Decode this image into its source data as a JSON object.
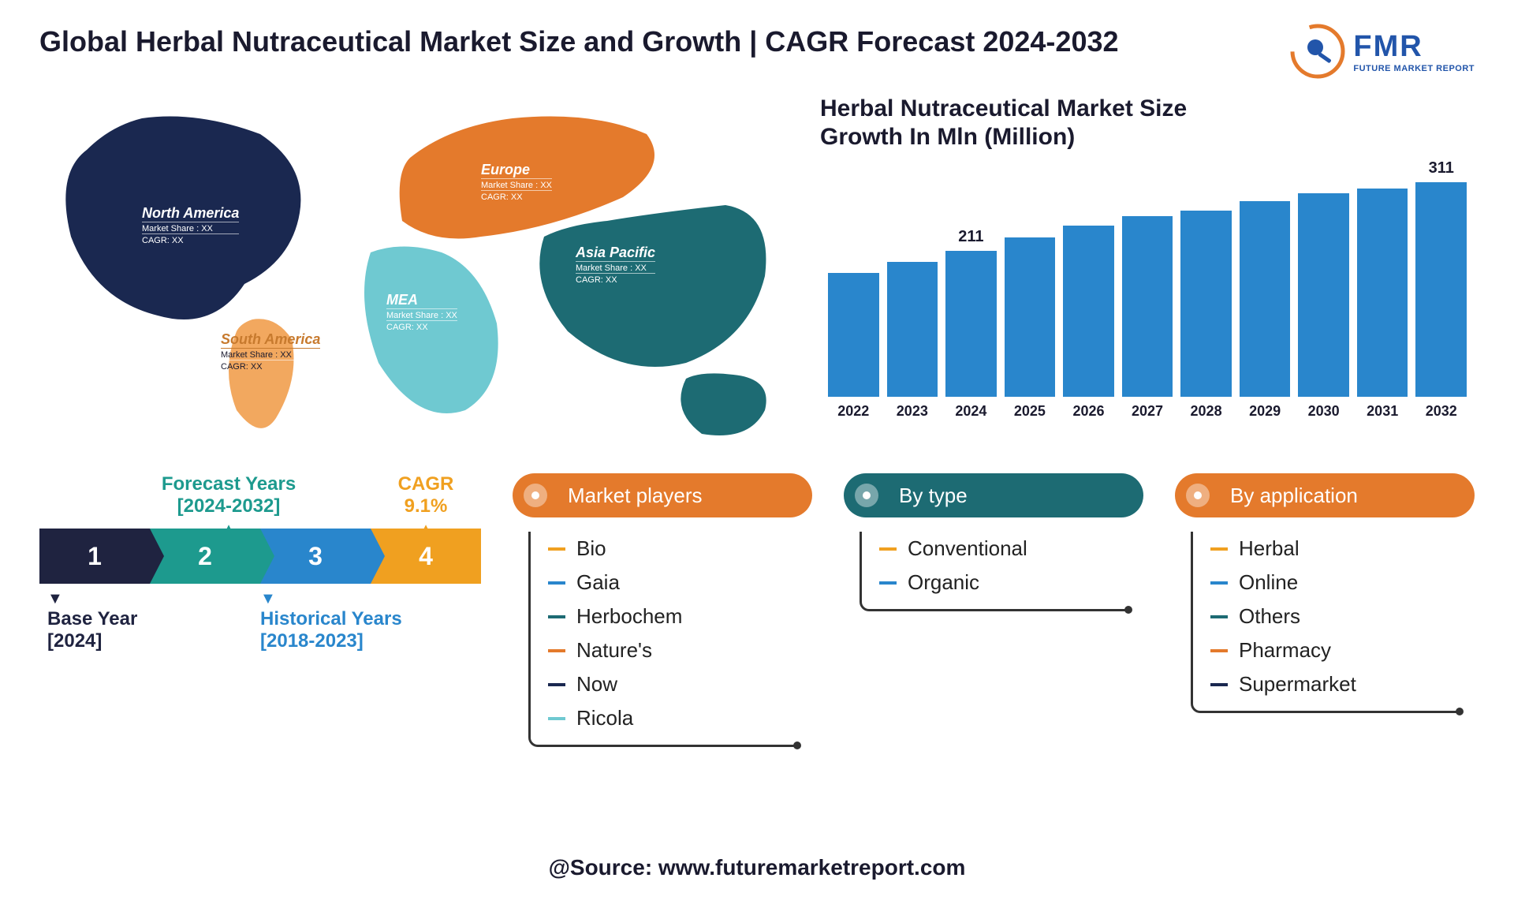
{
  "title": "Global Herbal Nutraceutical Market Size and Growth | CAGR Forecast 2024-2032",
  "logo": {
    "brand": "FMR",
    "sub": "FUTURE MARKET REPORT"
  },
  "map": {
    "regions": [
      {
        "key": "na",
        "name": "North America",
        "share": "Market Share : XX",
        "cagr": "CAGR: XX",
        "color": "#1a2850"
      },
      {
        "key": "sa",
        "name": "South America",
        "share": "Market Share : XX",
        "cagr": "CAGR: XX",
        "color": "#f2a85f"
      },
      {
        "key": "eu",
        "name": "Europe",
        "share": "Market Share : XX",
        "cagr": "CAGR: XX",
        "color": "#e47a2c"
      },
      {
        "key": "mea",
        "name": "MEA",
        "share": "Market Share : XX",
        "cagr": "CAGR: XX",
        "color": "#6fc9d1"
      },
      {
        "key": "ap",
        "name": "Asia Pacific",
        "share": "Market Share : XX",
        "cagr": "CAGR: XX",
        "color": "#1d6b73"
      }
    ]
  },
  "chart": {
    "title": "Herbal Nutraceutical Market Size Growth In Mln (Million)",
    "years": [
      "2022",
      "2023",
      "2024",
      "2025",
      "2026",
      "2027",
      "2028",
      "2029",
      "2030",
      "2031",
      "2032"
    ],
    "values": [
      180,
      196,
      211,
      231,
      248,
      262,
      270,
      283,
      295,
      302,
      311
    ],
    "show_value_label_at": {
      "2024": "211",
      "2032": "311"
    },
    "ylim": [
      0,
      320
    ],
    "bar_color": "#2986cc",
    "label_fontsize": 18,
    "value_fontsize": 20,
    "bar_gap": 10
  },
  "timeline": {
    "top": {
      "forecast": {
        "label": "Forecast Years",
        "range": "[2024-2032]",
        "color": "#1d9a8e"
      },
      "cagr": {
        "label": "CAGR",
        "value": "9.1%",
        "color": "#f0a020"
      }
    },
    "segments": [
      {
        "num": "1",
        "bg": "#1f2340",
        "arrow_color": "#1f2340"
      },
      {
        "num": "2",
        "bg": "#1d9a8e",
        "arrow_color": "#1d9a8e"
      },
      {
        "num": "3",
        "bg": "#2986cc",
        "arrow_color": "#2986cc"
      },
      {
        "num": "4",
        "bg": "#f0a020",
        "arrow_color": "#f0a020"
      }
    ],
    "bottom": {
      "base": {
        "label": "Base Year",
        "range": "[2024]",
        "color": "#1f2340"
      },
      "hist": {
        "label": "Historical Years",
        "range": "[2018-2023]",
        "color": "#2986cc"
      }
    }
  },
  "categories": [
    {
      "title": "Market players",
      "header_bg": "#e47a2c",
      "items": [
        {
          "name": "Bio",
          "color": "#f0a020"
        },
        {
          "name": "Gaia",
          "color": "#2986cc"
        },
        {
          "name": "Herbochem",
          "color": "#1d6b73"
        },
        {
          "name": "Nature's",
          "color": "#e47a2c"
        },
        {
          "name": "Now",
          "color": "#1a2850"
        },
        {
          "name": "Ricola",
          "color": "#6fc9d1"
        }
      ]
    },
    {
      "title": "By type",
      "header_bg": "#1d6b73",
      "items": [
        {
          "name": "Conventional",
          "color": "#f0a020"
        },
        {
          "name": "Organic",
          "color": "#2986cc"
        }
      ]
    },
    {
      "title": "By application",
      "header_bg": "#e47a2c",
      "items": [
        {
          "name": "Herbal",
          "color": "#f0a020"
        },
        {
          "name": "Online",
          "color": "#2986cc"
        },
        {
          "name": "Others",
          "color": "#1d6b73"
        },
        {
          "name": "Pharmacy",
          "color": "#e47a2c"
        },
        {
          "name": "Supermarket",
          "color": "#1a2850"
        }
      ]
    }
  ],
  "source": "@Source: www.futuremarketreport.com"
}
